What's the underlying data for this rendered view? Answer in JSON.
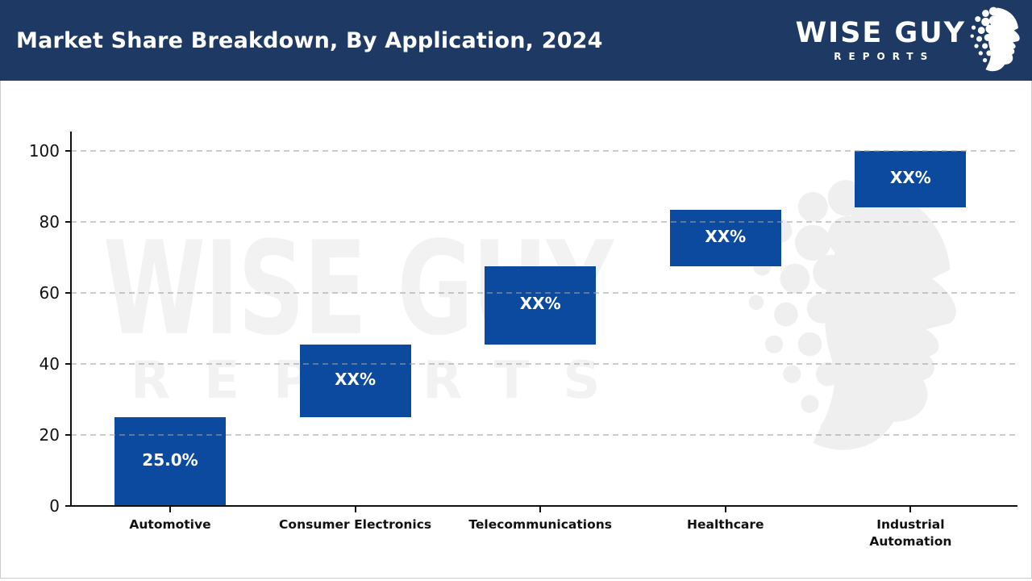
{
  "header": {
    "title": "Market Share Breakdown, By Application, 2024",
    "logo": {
      "line1": "WISE GUY",
      "line2": "REPORTS"
    }
  },
  "watermark": {
    "line1": "WISE GUY",
    "line2": "REPORTS"
  },
  "colors": {
    "header_bg": "#1e3a64",
    "bar": "#0b4a9e",
    "bar_label": "#ffffff",
    "watermark": "#f2f2f2",
    "axis": "#111111",
    "gridline": "#cfcfcf",
    "border": "#cccccc"
  },
  "chart_data": {
    "type": "bar",
    "subtype": "waterfall",
    "title": "Market Share Breakdown, By Application, 2024",
    "categories": [
      "Automotive",
      "Consumer Electronics",
      "Telecommunications",
      "Healthcare",
      "Industrial Automation"
    ],
    "segments": [
      {
        "category": "Automotive",
        "start": 0,
        "end": 25,
        "label": "25.0%"
      },
      {
        "category": "Consumer Electronics",
        "start": 25,
        "end": 45.5,
        "label": "XX%"
      },
      {
        "category": "Telecommunications",
        "start": 45.5,
        "end": 67.5,
        "label": "XX%"
      },
      {
        "category": "Healthcare",
        "start": 67.5,
        "end": 83.5,
        "label": "XX%"
      },
      {
        "category": "Industrial Automation",
        "start": 84,
        "end": 100,
        "label": "XX%"
      }
    ],
    "xlabel": "",
    "ylabel": "",
    "ylim": [
      0,
      100
    ],
    "yticks": [
      0,
      20,
      40,
      60,
      80,
      100
    ],
    "grid": "horizontal-dashed",
    "legend": "none",
    "bar_color": "#0b4a9e",
    "bar_label_color": "#ffffff"
  }
}
